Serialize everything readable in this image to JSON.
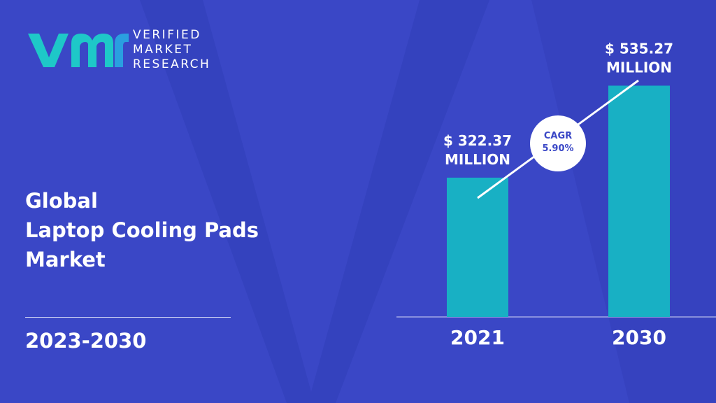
{
  "brand": {
    "name_line1": "VERIFIED",
    "name_line2": "MARKET",
    "name_line3": "RESEARCH",
    "logo_colors": [
      "#1ec8c8",
      "#2a9fe0"
    ]
  },
  "headline": {
    "line1": "Global",
    "line2": "Laptop Cooling Pads",
    "line3": "Market"
  },
  "forecast_period": "2023-2030",
  "colors": {
    "background": "#3a47c6",
    "background_shape": "#3441bd",
    "bar": "#18b0c4",
    "text": "#ffffff",
    "cagr_text": "#3a47c6"
  },
  "cagr": {
    "label": "CAGR",
    "value": "5.90%"
  },
  "chart_data": {
    "type": "bar",
    "categories": [
      "2021",
      "2030"
    ],
    "values": [
      322.37,
      535.27
    ],
    "value_labels": [
      [
        "$ 322.37",
        "MILLION"
      ],
      [
        "$ 535.27",
        "MILLION"
      ]
    ],
    "title": "",
    "xlabel": "",
    "ylabel": "",
    "ylim": [
      0,
      604
    ],
    "grid": false,
    "legend": "none"
  }
}
